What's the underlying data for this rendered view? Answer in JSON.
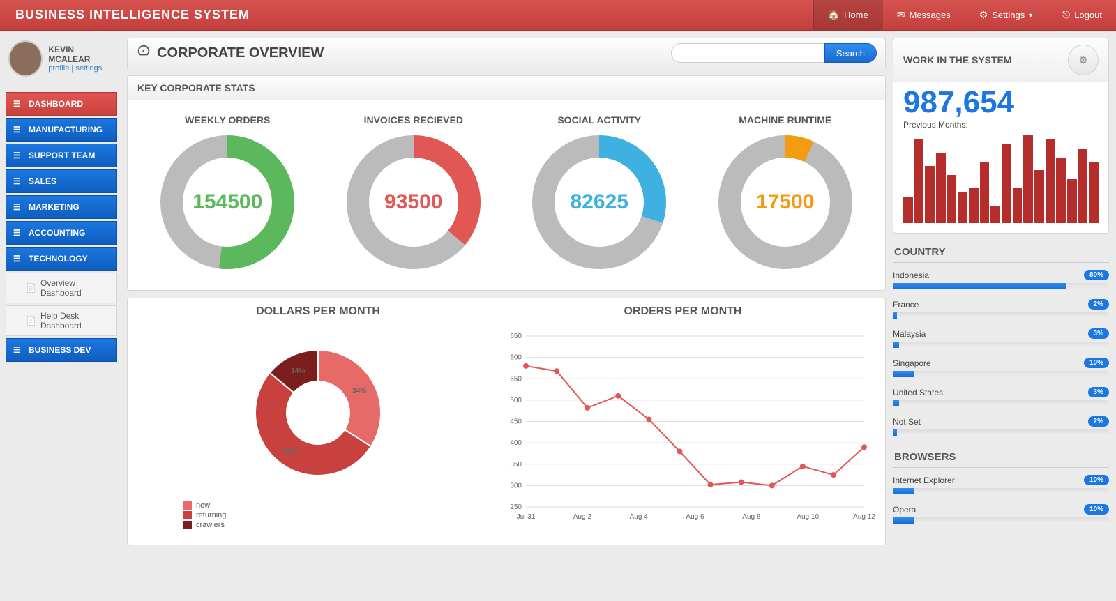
{
  "brand": "BUSINESS INTELLIGENCE SYSTEM",
  "topnav": {
    "home": "Home",
    "messages": "Messages",
    "settings": "Settings",
    "logout": "Logout"
  },
  "user": {
    "name": "KEVIN MCALEAR",
    "profile_link": "profile",
    "settings_link": "settings"
  },
  "sidemenu": {
    "dashboard": "Dashboard",
    "manufacturing": "Manufacturing",
    "support": "Support Team",
    "sales": "Sales",
    "marketing": "Marketing",
    "accounting": "Accounting",
    "technology": "Technology",
    "tech_sub1": "Overview Dashboard",
    "tech_sub2": "Help Desk Dashboard",
    "bizdev": "Business Dev"
  },
  "page_title": "Corporate Overview",
  "search_button": "Search",
  "stats_panel": {
    "title": "Key Corporate Stats",
    "donuts": [
      {
        "title": "WEEKLY ORDERS",
        "value": "154500",
        "color": "#5cb85c",
        "pct": 52,
        "track": "#bbbbbb"
      },
      {
        "title": "INVOICES RECIEVED",
        "value": "93500",
        "color": "#e15754",
        "pct": 36,
        "track": "#bbbbbb"
      },
      {
        "title": "SOCIAL ACTIVITY",
        "value": "82625",
        "color": "#3fb1e0",
        "pct": 30,
        "track": "#bbbbbb"
      },
      {
        "title": "MACHINE RUNTIME",
        "value": "17500",
        "color": "#f39c12",
        "pct": 7,
        "track": "#bbbbbb"
      }
    ]
  },
  "dollars_chart": {
    "title": "DOLLARS PER MONTH",
    "type": "donut",
    "slices": [
      {
        "label": "new",
        "pct": 34,
        "color": "#e66a67"
      },
      {
        "label": "returning",
        "pct": 52,
        "color": "#c8413e"
      },
      {
        "label": "crawlers",
        "pct": 14,
        "color": "#7a1f1d"
      }
    ],
    "label_color": "#ffffff",
    "label_fontsize": 13
  },
  "orders_chart": {
    "title": "ORDERS PER MONTH",
    "type": "line",
    "line_color": "#e15754",
    "marker_color": "#e15754",
    "y_min": 250,
    "y_max": 650,
    "y_step": 50,
    "x_labels": [
      "Jul 31",
      "Aug 2",
      "Aug 4",
      "Aug 6",
      "Aug 8",
      "Aug 10",
      "Aug 12"
    ],
    "points": [
      580,
      568,
      482,
      510,
      455,
      380,
      302,
      308,
      300,
      345,
      325,
      390
    ]
  },
  "work_panel": {
    "title": "Work in the System",
    "value": "987,654",
    "prev_label": "Previous Months:",
    "bars": [
      30,
      95,
      65,
      80,
      55,
      35,
      40,
      70,
      20,
      90,
      40,
      100,
      60,
      95,
      75,
      50,
      85,
      70
    ],
    "bar_color": "#b52e2b"
  },
  "country": {
    "title": "Country",
    "rows": [
      {
        "label": "Indonesia",
        "pct": "80%",
        "w": 80
      },
      {
        "label": "France",
        "pct": "2%",
        "w": 2
      },
      {
        "label": "Malaysia",
        "pct": "3%",
        "w": 3
      },
      {
        "label": "Singapore",
        "pct": "10%",
        "w": 10
      },
      {
        "label": "United States",
        "pct": "3%",
        "w": 3
      },
      {
        "label": "Not Set",
        "pct": "2%",
        "w": 2
      }
    ]
  },
  "browsers": {
    "title": "Browsers",
    "rows": [
      {
        "label": "Internet Explorer",
        "pct": "10%",
        "w": 10
      },
      {
        "label": "Opera",
        "pct": "10%",
        "w": 10
      }
    ]
  }
}
